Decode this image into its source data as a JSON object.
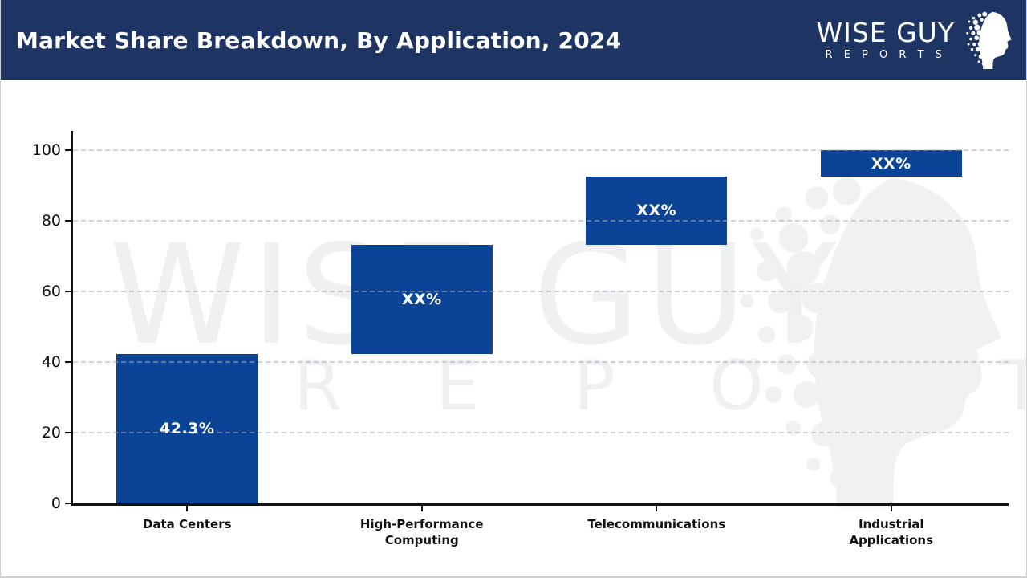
{
  "header": {
    "title": "Market Share Breakdown, By Application, 2024",
    "logo": {
      "line1": "WISE GUY",
      "line2": "R E P O R T S"
    }
  },
  "watermark": {
    "line1": "WISE GUY",
    "line2": "R E P O R T S"
  },
  "colors": {
    "header_bg": "#1e3563",
    "bar": "#0b4397",
    "bar_label": "#ffffff",
    "axis": "#111111",
    "grid": "#d6d9dd",
    "watermark": "#eff0f2",
    "page_border": "#ccd0d5"
  },
  "chart_data": {
    "type": "bar",
    "variant": "waterfall",
    "title": "Market Share Breakdown, By Application, 2024",
    "categories": [
      "Data Centers",
      "High-Performance Computing",
      "Telecommunications",
      "Industrial Applications"
    ],
    "categories_display": [
      "Data Centers",
      "High-Performance\nComputing",
      "Telecommunications",
      "Industrial\nApplications"
    ],
    "segments": [
      {
        "category": "Data Centers",
        "start": 0,
        "end": 42.3,
        "label": "42.3%"
      },
      {
        "category": "High-Performance Computing",
        "start": 42.3,
        "end": 73.2,
        "label": "XX%"
      },
      {
        "category": "Telecommunications",
        "start": 73.2,
        "end": 92.5,
        "label": "XX%"
      },
      {
        "category": "Industrial Applications",
        "start": 92.5,
        "end": 100,
        "label": "XX%"
      }
    ],
    "xlabel": "",
    "ylabel": "",
    "yticks": [
      0,
      20,
      40,
      60,
      80,
      100
    ],
    "ylim": [
      0,
      105
    ],
    "grid": "horizontal-dashed",
    "legend": "none",
    "bar_color": "#0b4397",
    "bar_label_color": "#ffffff"
  }
}
